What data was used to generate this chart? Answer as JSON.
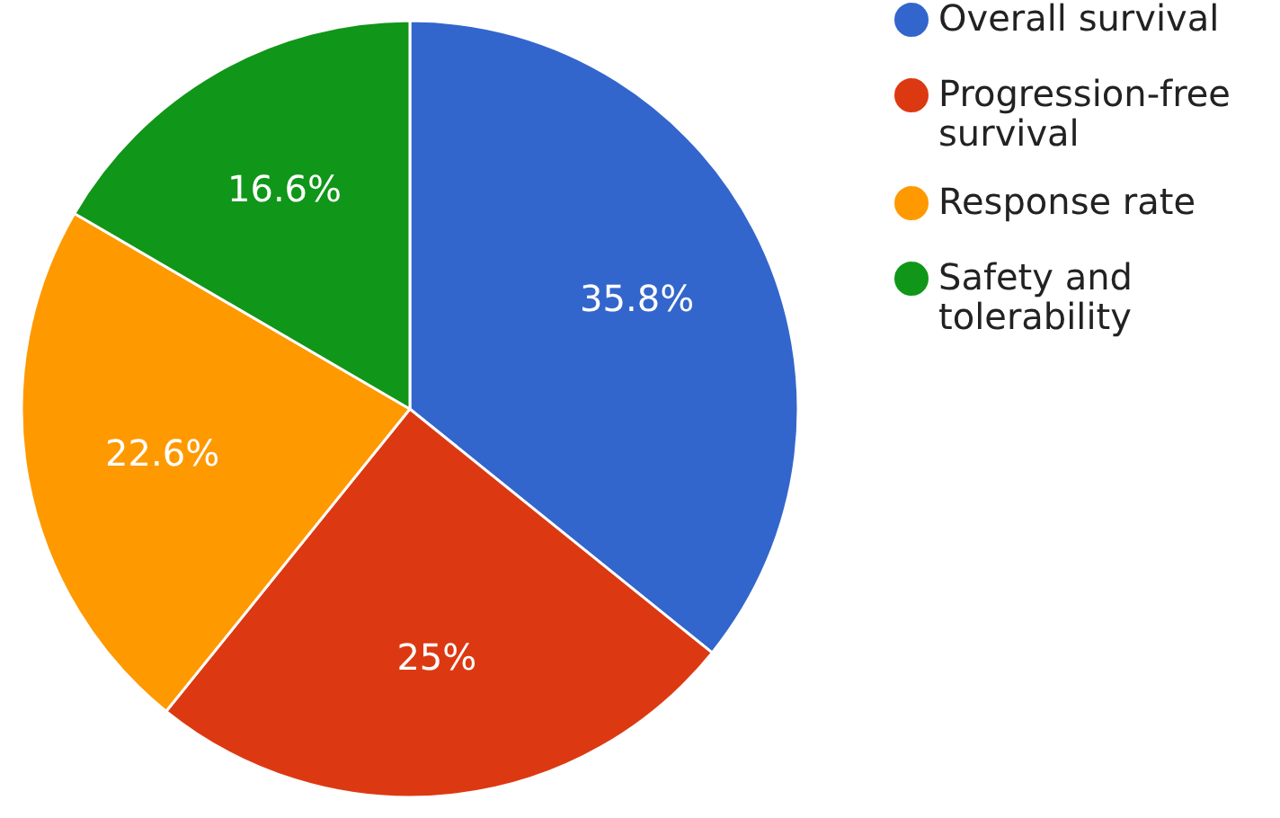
{
  "chart_data": {
    "type": "pie",
    "categories": [
      "Overall survival",
      "Progression-free survival",
      "Response rate",
      "Safety and tolerability"
    ],
    "values": [
      35.8,
      25,
      22.6,
      16.6
    ],
    "colors": [
      "#3366cc",
      "#dc3912",
      "#ff9900",
      "#109618"
    ],
    "value_labels": [
      "35.8%",
      "25%",
      "22.6%",
      "16.6%"
    ],
    "legend": "top right"
  }
}
